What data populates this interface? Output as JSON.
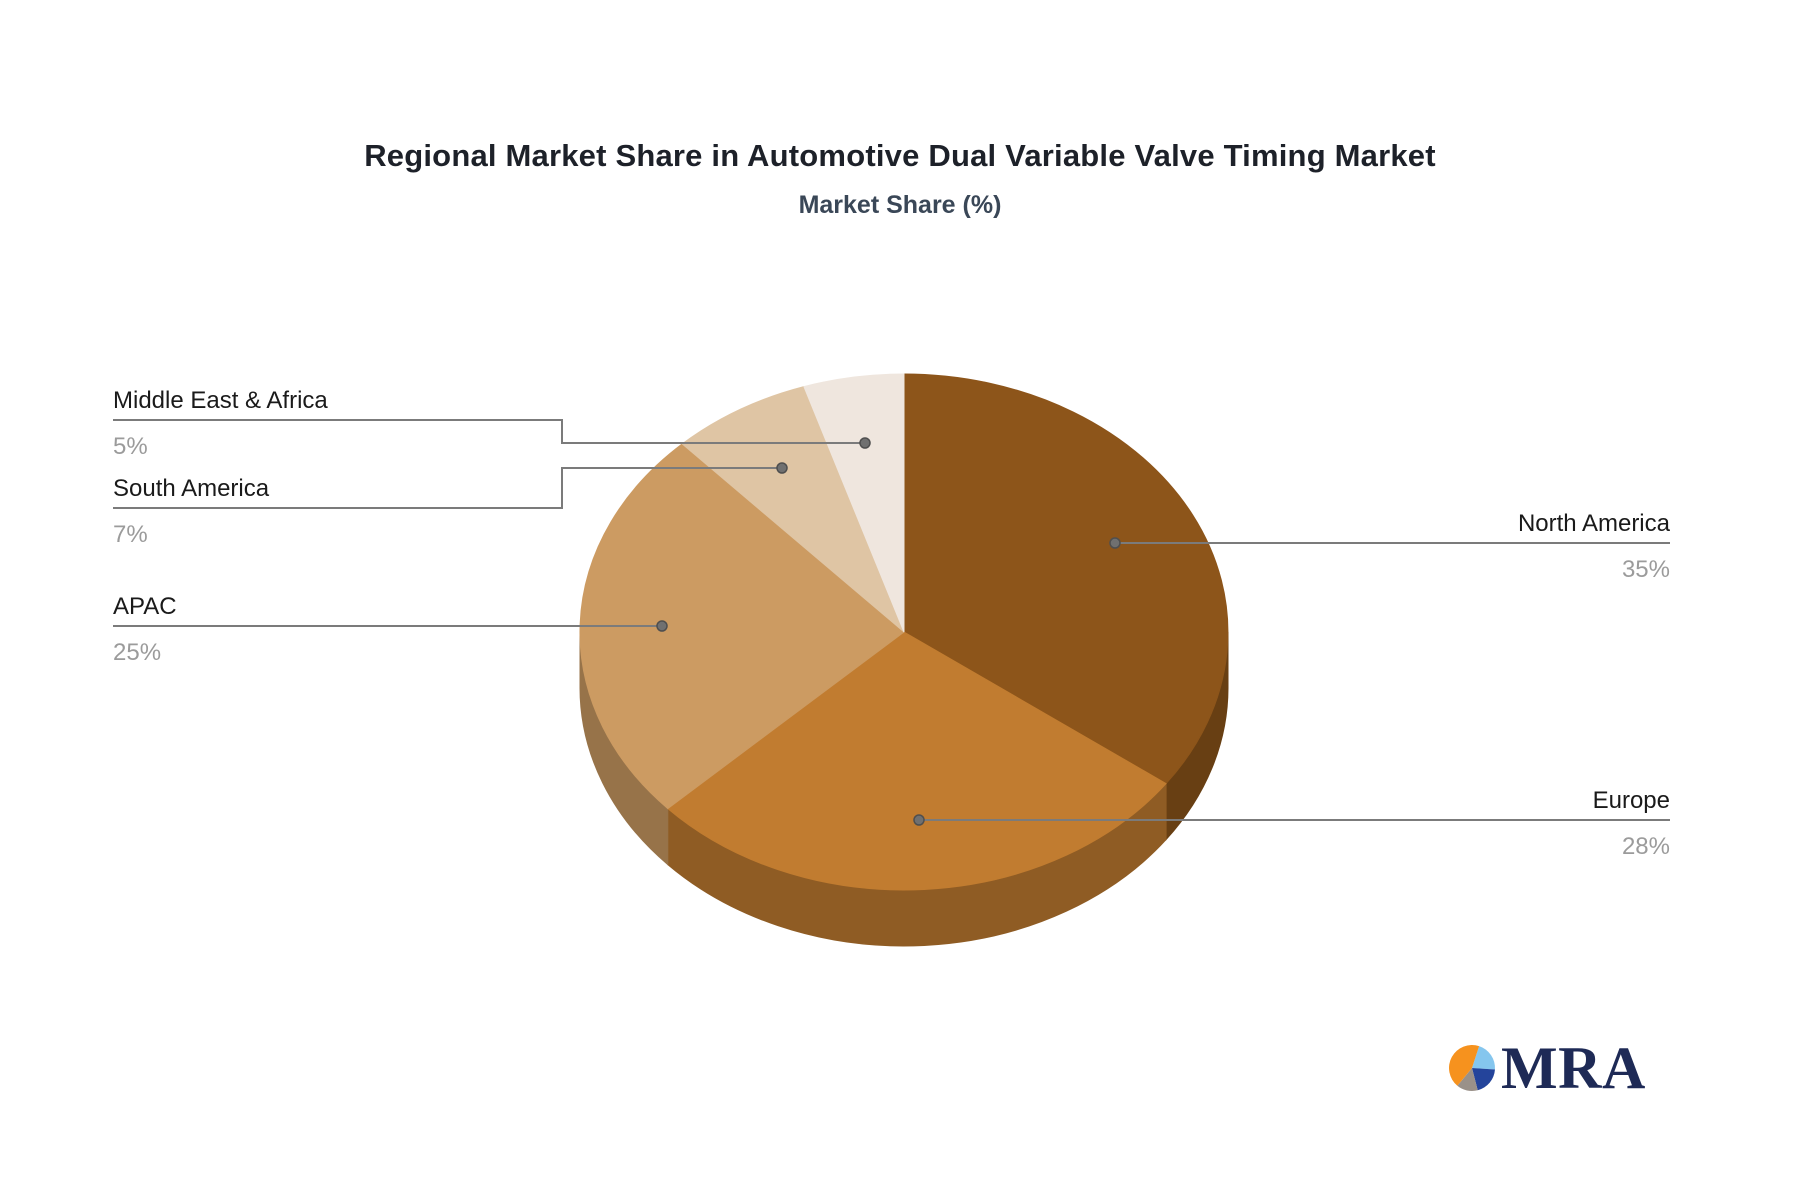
{
  "page": {
    "background": "#ffffff"
  },
  "header": {
    "title": "Regional Market Share in Automotive Dual Variable Valve Timing Market",
    "subtitle": "Market Share (%)"
  },
  "chart_data": {
    "type": "pie",
    "style": "3d",
    "title": "Regional Market Share in Automotive Dual Variable Valve Timing Market",
    "subtitle": "Market Share (%)",
    "unit": "%",
    "labels": [
      "North America",
      "Europe",
      "APAC",
      "South America",
      "Middle East & Africa"
    ],
    "values": [
      35,
      28,
      25,
      7,
      5
    ],
    "display_values": [
      "35%",
      "28%",
      "25%",
      "7%",
      "5%"
    ],
    "colors": [
      "#8D551A",
      "#C17C30",
      "#CC9B62",
      "#DFC5A4",
      "#EFE6DE"
    ],
    "start_angle_deg": 0,
    "direction": "clockwise",
    "legend_position": "callout-labels",
    "label_style": {
      "name_color": "#1a1a1a",
      "value_color": "#9b9b9b",
      "leader_line_color": "#7b7b7b",
      "leader_dot_color": "#707070"
    }
  },
  "logo": {
    "text": "MRA",
    "text_color": "#1E2A56",
    "icon_slices": [
      {
        "name": "light-blue",
        "color": "#85C6EE",
        "value": 21
      },
      {
        "name": "navy",
        "color": "#24449B",
        "value": 20
      },
      {
        "name": "gray",
        "color": "#9A9189",
        "value": 15
      },
      {
        "name": "orange",
        "color": "#F6921E",
        "value": 44
      }
    ]
  }
}
